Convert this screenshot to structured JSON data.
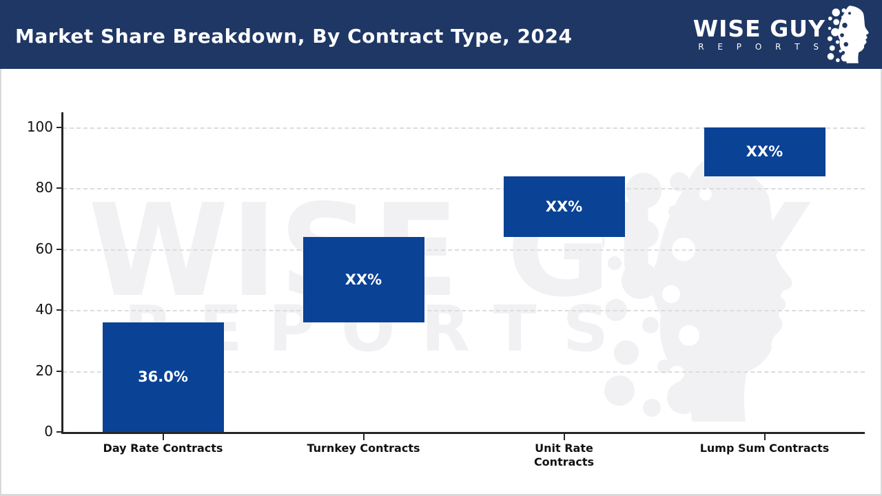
{
  "header": {
    "title": "Market Share Breakdown, By Contract Type, 2024",
    "logo_line1": "WISE GUY",
    "logo_line2": "R E P O R T S"
  },
  "watermark": {
    "line1": "WISE GUY",
    "line2": "REPORTS"
  },
  "colors": {
    "header_bg": "#1e3765",
    "bar": "#0a4296",
    "bar_label": "#ffffff",
    "axis": "#262626",
    "grid": "#dcdcdc",
    "watermark": "#f1f1f4"
  },
  "chart_data": {
    "type": "bar",
    "variant": "waterfall",
    "title": "Market Share Breakdown, By Contract Type, 2024",
    "unit": "percent",
    "categories": [
      "Day Rate Contracts",
      "Turnkey Contracts",
      "Unit Rate Contracts",
      "Lump Sum Contracts"
    ],
    "series": [
      {
        "name": "Market Share",
        "points": [
          {
            "category": "Day Rate Contracts",
            "start": 0,
            "end": 36,
            "value": 36,
            "bar_label": "36.0%",
            "tick_label": "Day Rate Contracts"
          },
          {
            "category": "Turnkey Contracts",
            "start": 36,
            "end": 64,
            "value": 28,
            "bar_label": "XX%",
            "tick_label": "Turnkey Contracts"
          },
          {
            "category": "Unit Rate Contracts",
            "start": 64,
            "end": 84,
            "value": 20,
            "bar_label": "XX%",
            "tick_label": "Unit Rate\nContracts"
          },
          {
            "category": "Lump Sum Contracts",
            "start": 84,
            "end": 100,
            "value": 16,
            "bar_label": "XX%",
            "tick_label": "Lump Sum Contracts"
          }
        ]
      }
    ],
    "ylim": [
      0,
      100
    ],
    "yticks": [
      0,
      20,
      40,
      60,
      80,
      100
    ],
    "grid": "horizontal-dashed",
    "legend": "none"
  }
}
